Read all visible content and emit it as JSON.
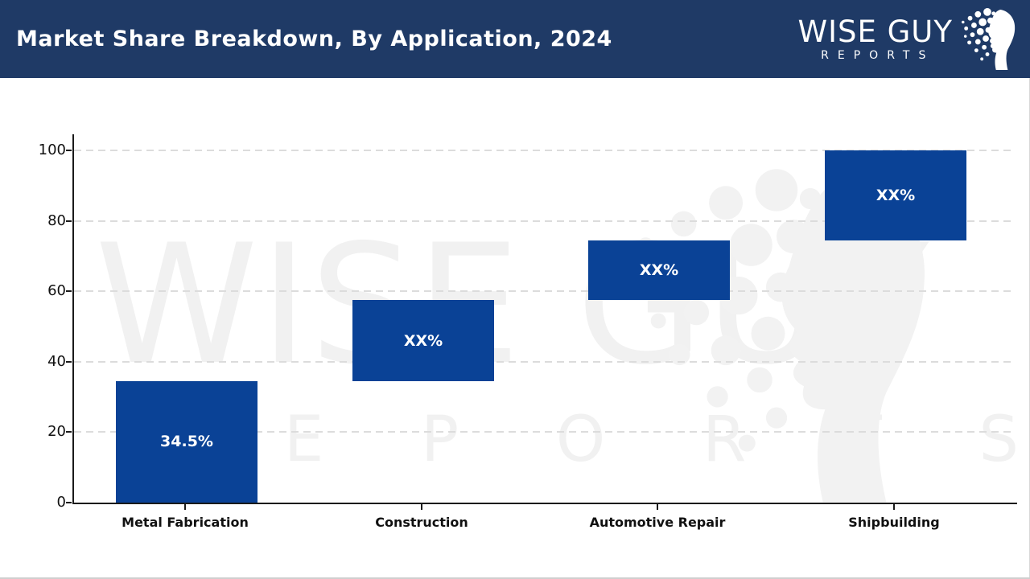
{
  "header": {
    "title": "Market Share Breakdown, By Application, 2024",
    "logo": {
      "line1": "WISE GUY",
      "line2": "REPORTS"
    }
  },
  "watermark": {
    "line1": "WISE GUY",
    "line2": "R E P O R T S"
  },
  "colors": {
    "header_bg": "#1f3a66",
    "bar": "#0a4296",
    "bar_label_text": "#ffffff",
    "grid": "#dcdcdc",
    "axis": "#1a1a1a",
    "watermark": "#f1f1f1"
  },
  "chart_data": {
    "type": "bar",
    "subtype": "waterfall",
    "title": "Market Share Breakdown, By Application, 2024",
    "categories": [
      "Metal Fabrication",
      "Construction",
      "Automotive Repair",
      "Shipbuilding"
    ],
    "segments": [
      {
        "category": "Metal Fabrication",
        "start": 0,
        "end": 34.5,
        "label": "34.5%"
      },
      {
        "category": "Construction",
        "start": 34.5,
        "end": 57.5,
        "label": "XX%"
      },
      {
        "category": "Automotive Repair",
        "start": 57.5,
        "end": 74.5,
        "label": "XX%"
      },
      {
        "category": "Shipbuilding",
        "start": 74.5,
        "end": 100,
        "label": "XX%"
      }
    ],
    "xlabel": "",
    "ylabel": "",
    "ylim": [
      0,
      100
    ],
    "yticks": [
      0,
      20,
      40,
      60,
      80,
      100
    ],
    "grid": "horizontal-dashed",
    "legend": "none"
  }
}
